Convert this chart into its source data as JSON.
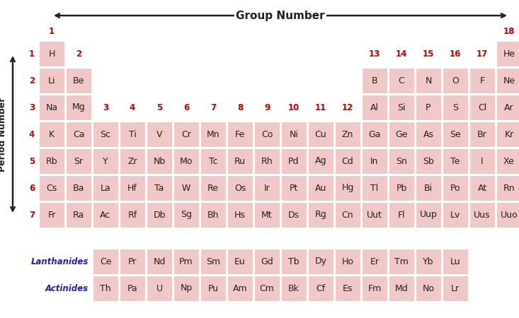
{
  "bg_color": "#ffffff",
  "cell_color": "#f0c8c8",
  "cell_edge_color": "#ffffff",
  "title_group": "Group Number",
  "title_period": "Period Number",
  "group_number_color": "#cc0000",
  "period_number_color": "#cc0000",
  "label_color_blue": "#2222bb",
  "element_text_color": "#222222",
  "elements": [
    {
      "symbol": "H",
      "period": 1,
      "group": 1
    },
    {
      "symbol": "He",
      "period": 1,
      "group": 18
    },
    {
      "symbol": "Li",
      "period": 2,
      "group": 1
    },
    {
      "symbol": "Be",
      "period": 2,
      "group": 2
    },
    {
      "symbol": "B",
      "period": 2,
      "group": 13
    },
    {
      "symbol": "C",
      "period": 2,
      "group": 14
    },
    {
      "symbol": "N",
      "period": 2,
      "group": 15
    },
    {
      "symbol": "O",
      "period": 2,
      "group": 16
    },
    {
      "symbol": "F",
      "period": 2,
      "group": 17
    },
    {
      "symbol": "Ne",
      "period": 2,
      "group": 18
    },
    {
      "symbol": "Na",
      "period": 3,
      "group": 1
    },
    {
      "symbol": "Mg",
      "period": 3,
      "group": 2
    },
    {
      "symbol": "Al",
      "period": 3,
      "group": 13
    },
    {
      "symbol": "Si",
      "period": 3,
      "group": 14
    },
    {
      "symbol": "P",
      "period": 3,
      "group": 15
    },
    {
      "symbol": "S",
      "period": 3,
      "group": 16
    },
    {
      "symbol": "Cl",
      "period": 3,
      "group": 17
    },
    {
      "symbol": "Ar",
      "period": 3,
      "group": 18
    },
    {
      "symbol": "K",
      "period": 4,
      "group": 1
    },
    {
      "symbol": "Ca",
      "period": 4,
      "group": 2
    },
    {
      "symbol": "Sc",
      "period": 4,
      "group": 3
    },
    {
      "symbol": "Ti",
      "period": 4,
      "group": 4
    },
    {
      "symbol": "V",
      "period": 4,
      "group": 5
    },
    {
      "symbol": "Cr",
      "period": 4,
      "group": 6
    },
    {
      "symbol": "Mn",
      "period": 4,
      "group": 7
    },
    {
      "symbol": "Fe",
      "period": 4,
      "group": 8
    },
    {
      "symbol": "Co",
      "period": 4,
      "group": 9
    },
    {
      "symbol": "Ni",
      "period": 4,
      "group": 10
    },
    {
      "symbol": "Cu",
      "period": 4,
      "group": 11
    },
    {
      "symbol": "Zn",
      "period": 4,
      "group": 12
    },
    {
      "symbol": "Ga",
      "period": 4,
      "group": 13
    },
    {
      "symbol": "Ge",
      "period": 4,
      "group": 14
    },
    {
      "symbol": "As",
      "period": 4,
      "group": 15
    },
    {
      "symbol": "Se",
      "period": 4,
      "group": 16
    },
    {
      "symbol": "Br",
      "period": 4,
      "group": 17
    },
    {
      "symbol": "Kr",
      "period": 4,
      "group": 18
    },
    {
      "symbol": "Rb",
      "period": 5,
      "group": 1
    },
    {
      "symbol": "Sr",
      "period": 5,
      "group": 2
    },
    {
      "symbol": "Y",
      "period": 5,
      "group": 3
    },
    {
      "symbol": "Zr",
      "period": 5,
      "group": 4
    },
    {
      "symbol": "Nb",
      "period": 5,
      "group": 5
    },
    {
      "symbol": "Mo",
      "period": 5,
      "group": 6
    },
    {
      "symbol": "Tc",
      "period": 5,
      "group": 7
    },
    {
      "symbol": "Ru",
      "period": 5,
      "group": 8
    },
    {
      "symbol": "Rh",
      "period": 5,
      "group": 9
    },
    {
      "symbol": "Pd",
      "period": 5,
      "group": 10
    },
    {
      "symbol": "Ag",
      "period": 5,
      "group": 11
    },
    {
      "symbol": "Cd",
      "period": 5,
      "group": 12
    },
    {
      "symbol": "In",
      "period": 5,
      "group": 13
    },
    {
      "symbol": "Sn",
      "period": 5,
      "group": 14
    },
    {
      "symbol": "Sb",
      "period": 5,
      "group": 15
    },
    {
      "symbol": "Te",
      "period": 5,
      "group": 16
    },
    {
      "symbol": "I",
      "period": 5,
      "group": 17
    },
    {
      "symbol": "Xe",
      "period": 5,
      "group": 18
    },
    {
      "symbol": "Cs",
      "period": 6,
      "group": 1
    },
    {
      "symbol": "Ba",
      "period": 6,
      "group": 2
    },
    {
      "symbol": "La",
      "period": 6,
      "group": 3
    },
    {
      "symbol": "Hf",
      "period": 6,
      "group": 4
    },
    {
      "symbol": "Ta",
      "period": 6,
      "group": 5
    },
    {
      "symbol": "W",
      "period": 6,
      "group": 6
    },
    {
      "symbol": "Re",
      "period": 6,
      "group": 7
    },
    {
      "symbol": "Os",
      "period": 6,
      "group": 8
    },
    {
      "symbol": "Ir",
      "period": 6,
      "group": 9
    },
    {
      "symbol": "Pt",
      "period": 6,
      "group": 10
    },
    {
      "symbol": "Au",
      "period": 6,
      "group": 11
    },
    {
      "symbol": "Hg",
      "period": 6,
      "group": 12
    },
    {
      "symbol": "Tl",
      "period": 6,
      "group": 13
    },
    {
      "symbol": "Pb",
      "period": 6,
      "group": 14
    },
    {
      "symbol": "Bi",
      "period": 6,
      "group": 15
    },
    {
      "symbol": "Po",
      "period": 6,
      "group": 16
    },
    {
      "symbol": "At",
      "period": 6,
      "group": 17
    },
    {
      "symbol": "Rn",
      "period": 6,
      "group": 18
    },
    {
      "symbol": "Fr",
      "period": 7,
      "group": 1
    },
    {
      "symbol": "Ra",
      "period": 7,
      "group": 2
    },
    {
      "symbol": "Ac",
      "period": 7,
      "group": 3
    },
    {
      "symbol": "Rf",
      "period": 7,
      "group": 4
    },
    {
      "symbol": "Db",
      "period": 7,
      "group": 5
    },
    {
      "symbol": "Sg",
      "period": 7,
      "group": 6
    },
    {
      "symbol": "Bh",
      "period": 7,
      "group": 7
    },
    {
      "symbol": "Hs",
      "period": 7,
      "group": 8
    },
    {
      "symbol": "Mt",
      "period": 7,
      "group": 9
    },
    {
      "symbol": "Ds",
      "period": 7,
      "group": 10
    },
    {
      "symbol": "Rg",
      "period": 7,
      "group": 11
    },
    {
      "symbol": "Cn",
      "period": 7,
      "group": 12
    },
    {
      "symbol": "Uut",
      "period": 7,
      "group": 13
    },
    {
      "symbol": "Fl",
      "period": 7,
      "group": 14
    },
    {
      "symbol": "Uup",
      "period": 7,
      "group": 15
    },
    {
      "symbol": "Lv",
      "period": 7,
      "group": 16
    },
    {
      "symbol": "Uus",
      "period": 7,
      "group": 17
    },
    {
      "symbol": "Uuo",
      "period": 7,
      "group": 18
    }
  ],
  "lanthanides": [
    "Ce",
    "Pr",
    "Nd",
    "Pm",
    "Sm",
    "Eu",
    "Gd",
    "Tb",
    "Dy",
    "Ho",
    "Er",
    "Tm",
    "Yb",
    "Lu"
  ],
  "actinides": [
    "Th",
    "Pa",
    "U",
    "Np",
    "Pu",
    "Am",
    "Cm",
    "Bk",
    "Cf",
    "Es",
    "Fm",
    "Md",
    "No",
    "Lr"
  ],
  "period_numbers": [
    1,
    2,
    3,
    4,
    5,
    6,
    7
  ],
  "top_group_nums": [
    1,
    2,
    13,
    14,
    15,
    16,
    17,
    18
  ],
  "mid_group_nums": [
    3,
    4,
    5,
    6,
    7,
    8,
    9,
    10,
    11,
    12
  ]
}
